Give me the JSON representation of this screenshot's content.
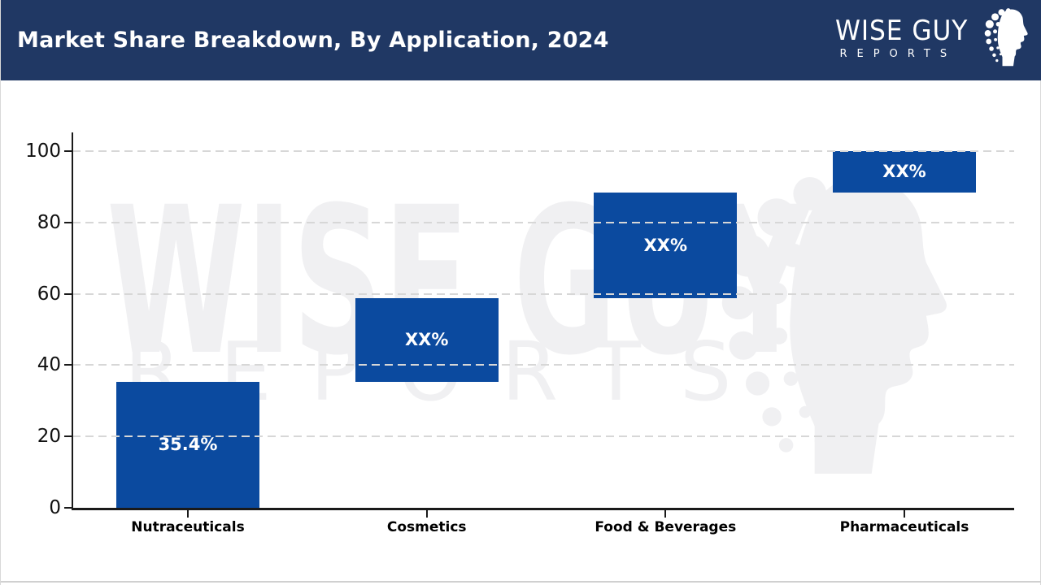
{
  "header": {
    "title": "Market Share Breakdown, By Application, 2024",
    "logo": {
      "brand": "WISE GUY",
      "sub": "REPORTS"
    }
  },
  "watermark": {
    "brand": "WISE GUY",
    "sub": "REPORTS"
  },
  "chart_data": {
    "type": "bar",
    "subtype": "waterfall",
    "title": "Market Share Breakdown, By Application, 2024",
    "categories": [
      "Nutraceuticals",
      "Cosmetics",
      "Food & Beverages",
      "Pharmaceuticals"
    ],
    "segments": [
      {
        "category": "Nutraceuticals",
        "start": 0,
        "end": 35.4,
        "label": "35.4%"
      },
      {
        "category": "Cosmetics",
        "start": 35.4,
        "end": 58.8,
        "label": "XX%"
      },
      {
        "category": "Food & Beverages",
        "start": 58.8,
        "end": 88.4,
        "label": "XX%"
      },
      {
        "category": "Pharmaceuticals",
        "start": 88.4,
        "end": 100,
        "label": "XX%"
      }
    ],
    "ylim": [
      0,
      100
    ],
    "y_ticks": [
      0,
      20,
      40,
      60,
      80,
      100
    ],
    "grid": "horizontal-dashed",
    "legend": "none",
    "bar_color": "#0b4a9f"
  },
  "colors": {
    "header_bg": "#203864",
    "bar": "#0b4a9f",
    "bar_label": "#ffffff",
    "watermark": "#f0f0f2",
    "axis": "#1a1a1a",
    "grid": "#d7d7d7"
  }
}
